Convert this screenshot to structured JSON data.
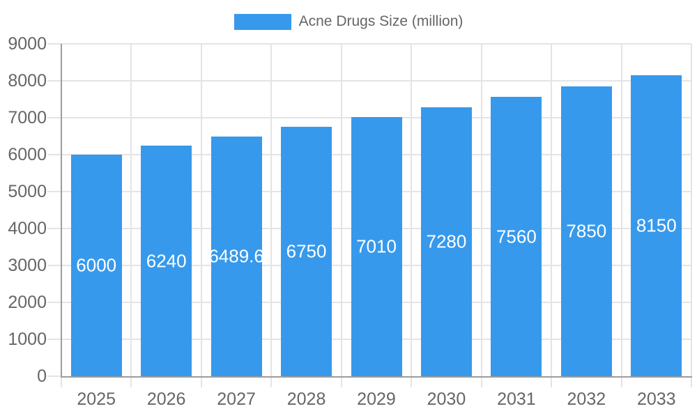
{
  "chart_data": {
    "type": "bar",
    "title": "",
    "legend_label": "Acne Drugs Size (million)",
    "legend_position": "top",
    "categories": [
      "2025",
      "2026",
      "2027",
      "2028",
      "2029",
      "2030",
      "2031",
      "2032",
      "2033"
    ],
    "series": [
      {
        "name": "Acne Drugs Size (million)",
        "values": [
          6000,
          6240,
          6489.6,
          6750,
          7010,
          7280,
          7560,
          7850,
          8150
        ],
        "value_labels": [
          "6000",
          "6240",
          "6489.6",
          "6750",
          "7010",
          "7280",
          "7560",
          "7850",
          "8150"
        ]
      }
    ],
    "xlabel": "",
    "ylabel": "",
    "ylim": [
      0,
      9000
    ],
    "y_ticks": [
      0,
      1000,
      2000,
      3000,
      4000,
      5000,
      6000,
      7000,
      8000,
      9000
    ],
    "grid": true,
    "colors": {
      "bar": "#3799EC",
      "axis": "#9C9C9C",
      "grid": "#E4E4E4",
      "text": "#666666",
      "value_label": "#FFFFFF",
      "background": "#FFFFFF"
    }
  }
}
